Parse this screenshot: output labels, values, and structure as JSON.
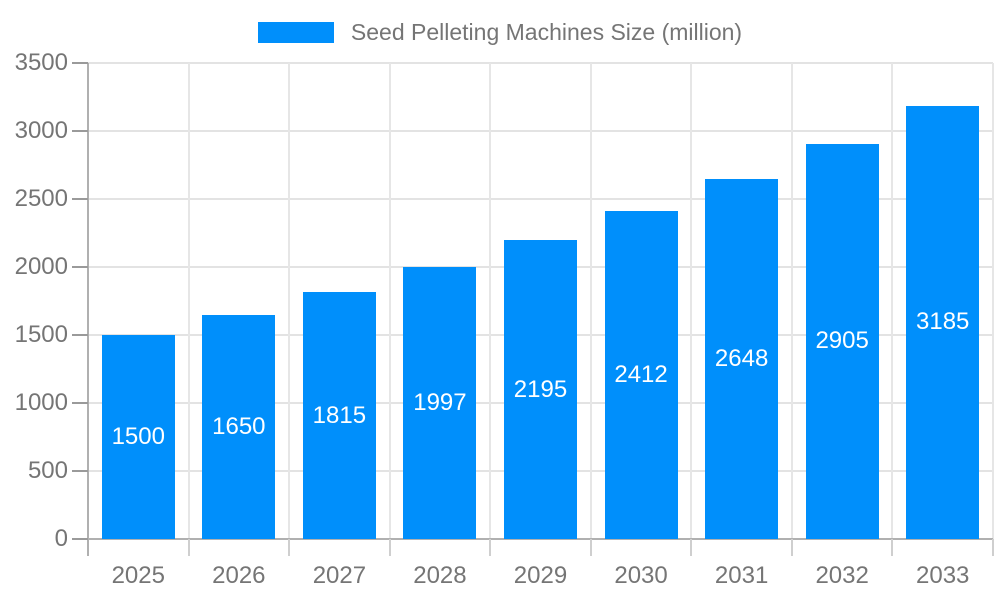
{
  "legend": {
    "label": "Seed Pelleting Machines Size (million)"
  },
  "colors": {
    "bar": "#008ffb",
    "bar_label_text": "#ffffff",
    "grid_line": "#e3e3e3",
    "grid_line_vertical": "#e6e6e6",
    "axis_line": "#b0b0b0",
    "y_tick": "#9a9a9a",
    "x_tick": "#cfcfcf",
    "axis_label_text": "#757575",
    "background": "#ffffff"
  },
  "chart_data": {
    "type": "bar",
    "title": "Seed Pelleting Machines Size (million)",
    "categories": [
      "2025",
      "2026",
      "2027",
      "2028",
      "2029",
      "2030",
      "2031",
      "2032",
      "2033"
    ],
    "values": [
      1500,
      1650,
      1815,
      1997,
      2195,
      2412,
      2648,
      2905,
      3185
    ],
    "series_name": "Seed Pelleting Machines Size (million)",
    "xlabel": "",
    "ylabel": "",
    "ylim": [
      0,
      3500
    ],
    "yticks": [
      0,
      500,
      1000,
      1500,
      2000,
      2500,
      3000,
      3500
    ],
    "grid": true,
    "legend_position": "top-center",
    "data_labels": "inside-center-white"
  }
}
